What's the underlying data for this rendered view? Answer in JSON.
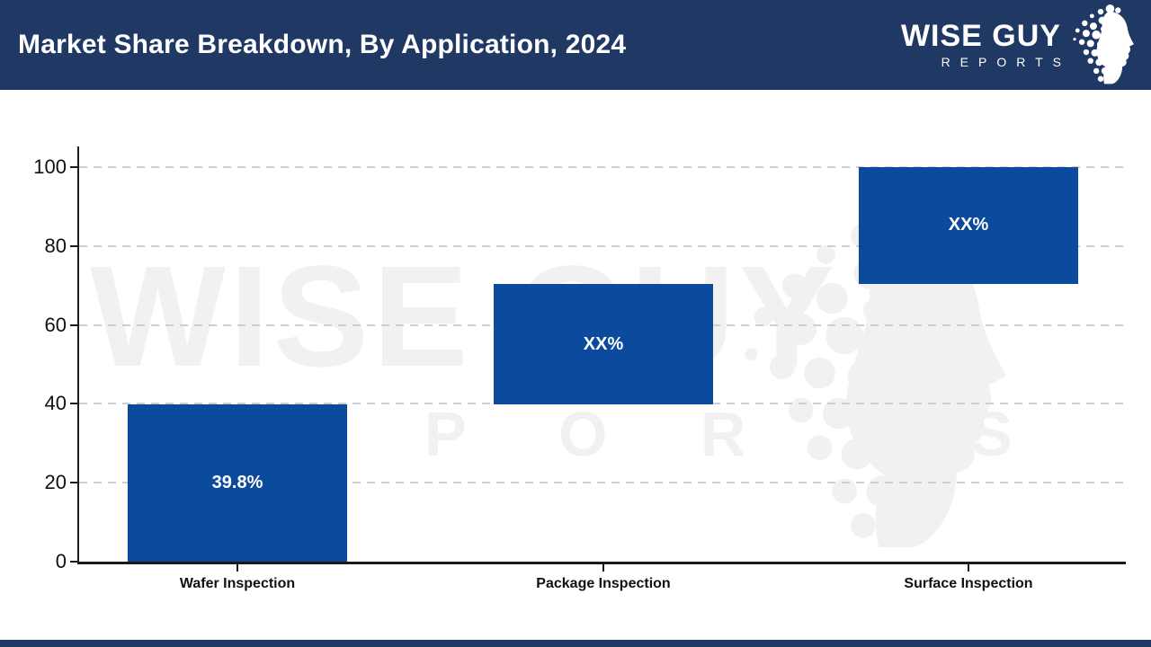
{
  "header": {
    "title": "Market Share Breakdown, By Application, 2024",
    "logo": {
      "line1": "WISE GUY",
      "line2": "REPORTS"
    }
  },
  "watermark": {
    "line1": "WISE GUY",
    "line2": "R E P O R T S"
  },
  "chart_data": {
    "type": "bar",
    "subtype": "waterfall-stacked-segments",
    "title": "Market Share Breakdown, By Application, 2024",
    "categories": [
      "Wafer Inspection",
      "Package Inspection",
      "Surface Inspection"
    ],
    "series": [
      {
        "name": "Market Share",
        "segments": [
          {
            "category": "Wafer Inspection",
            "start": 0,
            "end": 39.8,
            "label": "39.8%"
          },
          {
            "category": "Package Inspection",
            "start": 39.8,
            "end": 70.4,
            "label": "XX%"
          },
          {
            "category": "Surface Inspection",
            "start": 70.4,
            "end": 100,
            "label": "XX%"
          }
        ]
      }
    ],
    "xlabel": "",
    "ylabel": "",
    "ylim": [
      0,
      105
    ],
    "yticks": [
      0,
      20,
      40,
      60,
      80,
      100
    ],
    "grid": "horizontal-dashed",
    "legend": "none",
    "colors": {
      "bar": "#0c4a9e",
      "bar_label": "#ffffff",
      "axis": "#1a1a1a",
      "gridline": "#cfcfcf",
      "header_bg": "#1f3864",
      "watermark": "#f1f1f1",
      "tick_label": "#111111"
    }
  }
}
